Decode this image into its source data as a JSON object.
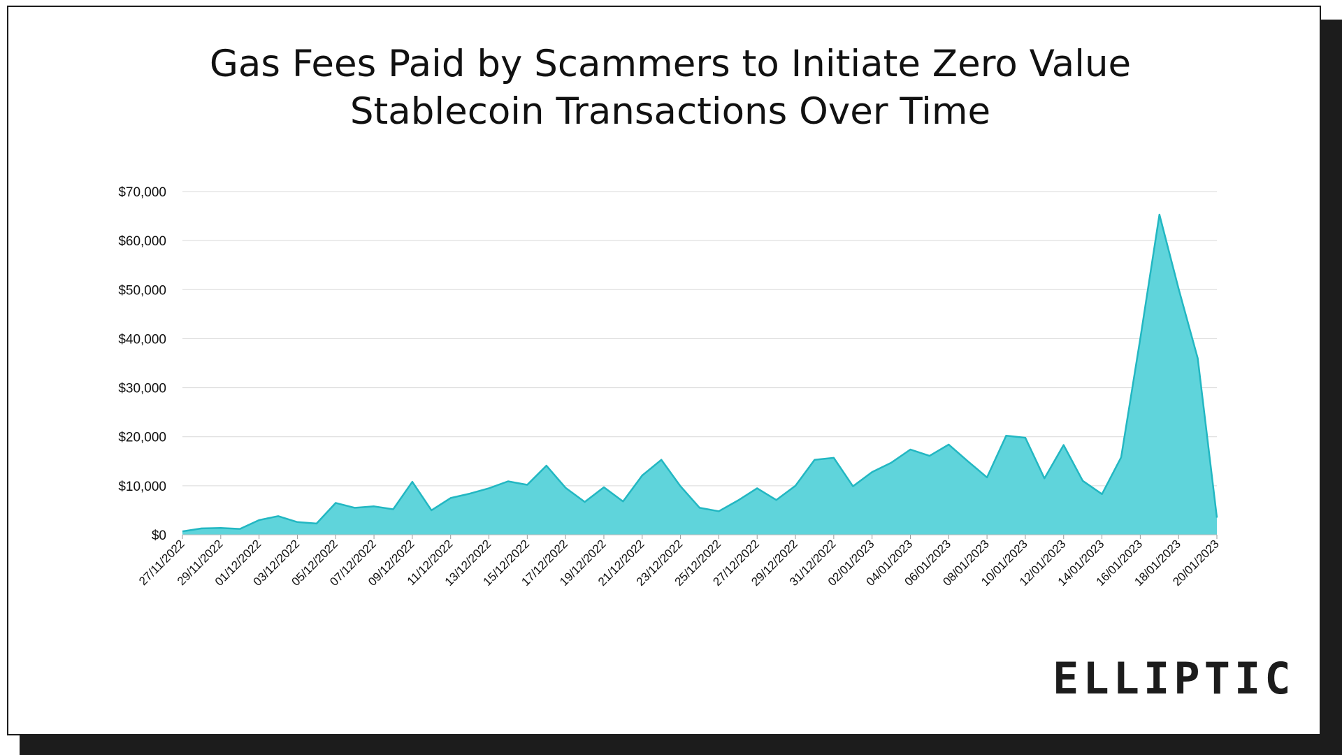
{
  "title_line1": "Gas Fees Paid by Scammers to Initiate Zero Value",
  "title_line2": "Stablecoin Transactions Over Time",
  "logo_text": "ELLIPTIC",
  "colors": {
    "area_fill": "#5fd4db",
    "area_stroke": "#22b7c2",
    "grid": "#d9d9d9",
    "text": "#111111",
    "frame": "#1c1c1c"
  },
  "chart_data": {
    "type": "area",
    "title": "Gas Fees Paid by Scammers to Initiate Zero Value Stablecoin Transactions Over Time",
    "xlabel": "",
    "ylabel": "",
    "ylim": [
      0,
      70000
    ],
    "y_ticks": [
      {
        "value": 0,
        "label": "$0"
      },
      {
        "value": 10000,
        "label": "$10,000"
      },
      {
        "value": 20000,
        "label": "$20,000"
      },
      {
        "value": 30000,
        "label": "$30,000"
      },
      {
        "value": 40000,
        "label": "$40,000"
      },
      {
        "value": 50000,
        "label": "$50,000"
      },
      {
        "value": 60000,
        "label": "$60,000"
      },
      {
        "value": 70000,
        "label": "$70,000"
      }
    ],
    "x_tick_labels": [
      "27/11/2022",
      "29/11/2022",
      "01/12/2022",
      "03/12/2022",
      "05/12/2022",
      "07/12/2022",
      "09/12/2022",
      "11/12/2022",
      "13/12/2022",
      "15/12/2022",
      "17/12/2022",
      "19/12/2022",
      "21/12/2022",
      "23/12/2022",
      "25/12/2022",
      "27/12/2022",
      "29/12/2022",
      "31/12/2022",
      "02/01/2023",
      "04/01/2023",
      "06/01/2023",
      "08/01/2023",
      "10/01/2023",
      "12/01/2023",
      "14/01/2023",
      "16/01/2023",
      "18/01/2023",
      "20/01/2023"
    ],
    "grid": true,
    "legend": "none",
    "series": [
      {
        "x": [
          "27/11/2022",
          "28/11/2022",
          "29/11/2022",
          "30/11/2022",
          "01/12/2022",
          "02/12/2022",
          "03/12/2022",
          "04/12/2022",
          "05/12/2022",
          "06/12/2022",
          "07/12/2022",
          "08/12/2022",
          "09/12/2022",
          "10/12/2022",
          "11/12/2022",
          "12/12/2022",
          "13/12/2022",
          "14/12/2022",
          "15/12/2022",
          "16/12/2022",
          "17/12/2022",
          "18/12/2022",
          "19/12/2022",
          "20/12/2022",
          "21/12/2022",
          "22/12/2022",
          "23/12/2022",
          "24/12/2022",
          "25/12/2022",
          "26/12/2022",
          "27/12/2022",
          "28/12/2022",
          "29/12/2022",
          "30/12/2022",
          "31/12/2022",
          "01/01/2023",
          "02/01/2023",
          "03/01/2023",
          "04/01/2023",
          "05/01/2023",
          "06/01/2023",
          "07/01/2023",
          "08/01/2023",
          "09/01/2023",
          "10/01/2023",
          "11/01/2023",
          "12/01/2023",
          "13/01/2023",
          "14/01/2023",
          "15/01/2023",
          "16/01/2023",
          "17/01/2023",
          "18/01/2023",
          "19/01/2023",
          "20/01/2023"
        ],
        "values": [
          700,
          1300,
          1400,
          1200,
          3000,
          3800,
          2600,
          2300,
          6500,
          5500,
          5800,
          5200,
          10800,
          5000,
          7500,
          8400,
          9500,
          10900,
          10200,
          14100,
          9600,
          6700,
          9700,
          6800,
          12100,
          15300,
          9900,
          5500,
          4800,
          7000,
          9500,
          7100,
          10000,
          15300,
          15700,
          9900,
          12800,
          14700,
          17400,
          16100,
          18400,
          15000,
          11700,
          20200,
          19800,
          11500,
          18300,
          11000,
          8300,
          15800,
          40000,
          65300,
          50200,
          36000,
          3500
        ]
      }
    ]
  }
}
